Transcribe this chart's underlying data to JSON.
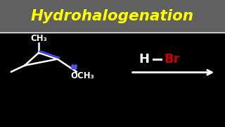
{
  "title": "Hydrohalogenation",
  "title_color": "#FFFF00",
  "bg_color": "#000000",
  "line_color": "#FFFFFF",
  "ch3_label": "CH₃",
  "och3_label": "OCH₃",
  "h_label": "H",
  "br_label": "Br",
  "h_color": "#FFFFFF",
  "br_color": "#CC0000",
  "dot_color": "#5555FF",
  "bond_color": "#4444EE",
  "skeleton_color": "#FFFFFF",
  "arrow_color": "#FFFFFF",
  "title_bg": "#888888"
}
